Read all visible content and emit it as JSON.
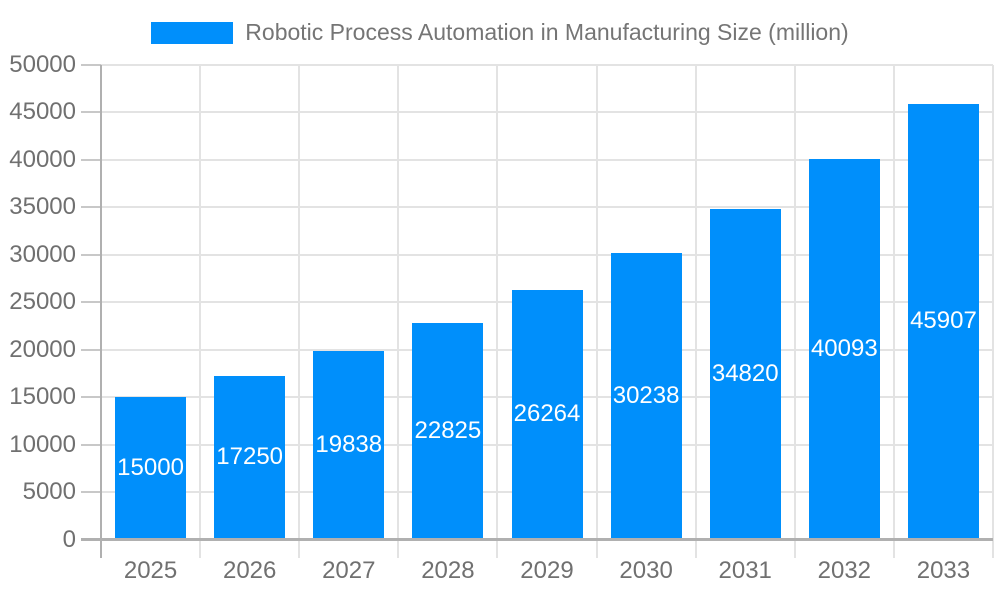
{
  "chart_data": {
    "type": "bar",
    "title": "Robotic Process Automation in Manufacturing Size (million)",
    "legend": {
      "position": "top",
      "items": [
        {
          "label": "Robotic Process Automation in Manufacturing Size (million)",
          "color": "#008FFB"
        }
      ]
    },
    "categories": [
      "2025",
      "2026",
      "2027",
      "2028",
      "2029",
      "2030",
      "2031",
      "2032",
      "2033"
    ],
    "values": [
      15000,
      17250,
      19838,
      22825,
      26264,
      30238,
      34820,
      40093,
      45907
    ],
    "xlabel": "",
    "ylabel": "",
    "ylim": [
      0,
      50000
    ],
    "ytick_step": 5000,
    "yticks": [
      0,
      5000,
      10000,
      15000,
      20000,
      25000,
      30000,
      35000,
      40000,
      45000,
      50000
    ],
    "grid": true,
    "data_labels": true,
    "bar_width_ratio": 0.72,
    "colors": {
      "bar": "#008FFB",
      "data_label_text": "#ffffff",
      "axis_label_text": "#707070",
      "legend_text": "#757575",
      "gridline": "#e3e3e3",
      "axis_line": "#b0b0b0",
      "tick": "#c8c8c8",
      "background": "#ffffff"
    }
  }
}
